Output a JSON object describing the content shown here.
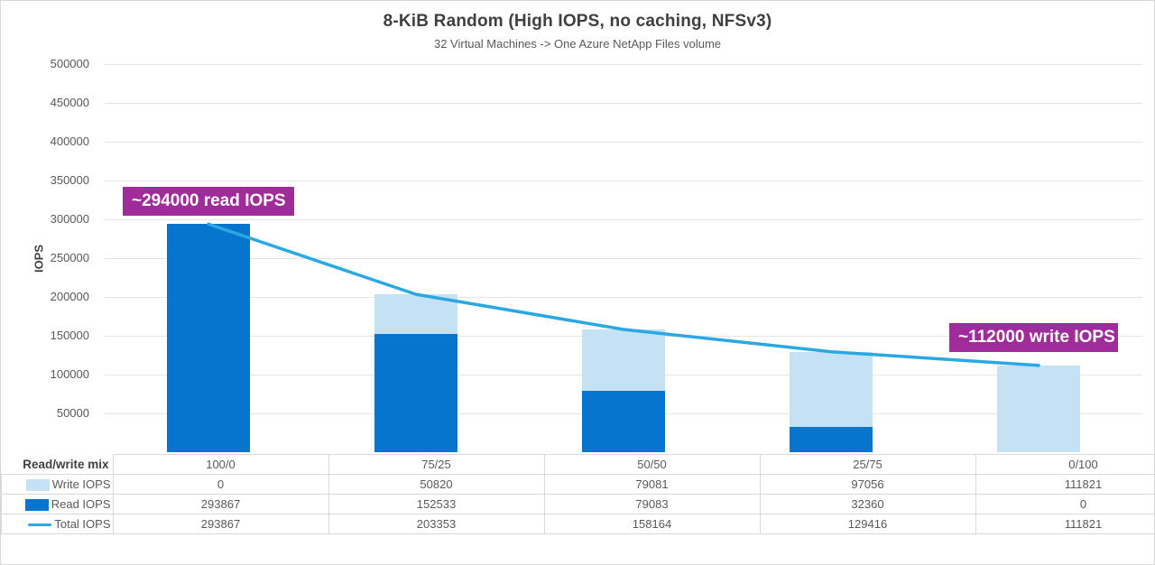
{
  "chart_data": {
    "type": "bar",
    "variant": "stacked-bars-with-total-line",
    "title": "8-KiB Random (High IOPS, no caching, NFSv3)",
    "subtitle": "32 Virtual Machines -> One Azure NetApp Files volume",
    "xlabel": "Read/write mix",
    "ylabel": "IOPS",
    "ylim": [
      0,
      500000
    ],
    "ytick_step": 50000,
    "grid": true,
    "categories": [
      "100/0",
      "75/25",
      "50/50",
      "25/75",
      "0/100"
    ],
    "series": [
      {
        "name": "Write IOPS",
        "type": "bar",
        "stack_order": 2,
        "color": "#C5E2F5",
        "values": [
          0,
          50820,
          79081,
          97056,
          111821
        ]
      },
      {
        "name": "Read IOPS",
        "type": "bar",
        "stack_order": 1,
        "color": "#0575CE",
        "values": [
          293867,
          152533,
          79083,
          32360,
          0
        ]
      },
      {
        "name": "Total IOPS",
        "type": "line",
        "color": "#2BA8E2",
        "values": [
          293867,
          203353,
          158164,
          129416,
          111821
        ]
      }
    ],
    "annotations": [
      {
        "text": "~294000 read IOPS"
      },
      {
        "text": "~112000 write IOPS"
      }
    ],
    "legend_position": "table-left-column"
  },
  "table": {
    "corner_label": "Read/write mix",
    "columns": [
      "100/0",
      "75/25",
      "50/50",
      "25/75",
      "0/100"
    ],
    "rows": [
      {
        "label": "Write IOPS",
        "swatch": "write-bar-swatch",
        "values": [
          "0",
          "50820",
          "79081",
          "97056",
          "111821"
        ]
      },
      {
        "label": "Read IOPS",
        "swatch": "read-bar-swatch",
        "values": [
          "293867",
          "152533",
          "79083",
          "32360",
          "0"
        ]
      },
      {
        "label": "Total IOPS",
        "swatch": "total-line-swatch",
        "values": [
          "293867",
          "203353",
          "158164",
          "129416",
          "111821"
        ]
      }
    ]
  },
  "colors": {
    "read_bar": "#0575CE",
    "write_bar": "#C5E2F5",
    "total_line": "#2BA8E2",
    "annotation_bg": "#A02B9A",
    "gridline": "#E4E4E4",
    "table_border": "#D9D9D9",
    "text_primary": "#404040",
    "text_secondary": "#595959"
  }
}
